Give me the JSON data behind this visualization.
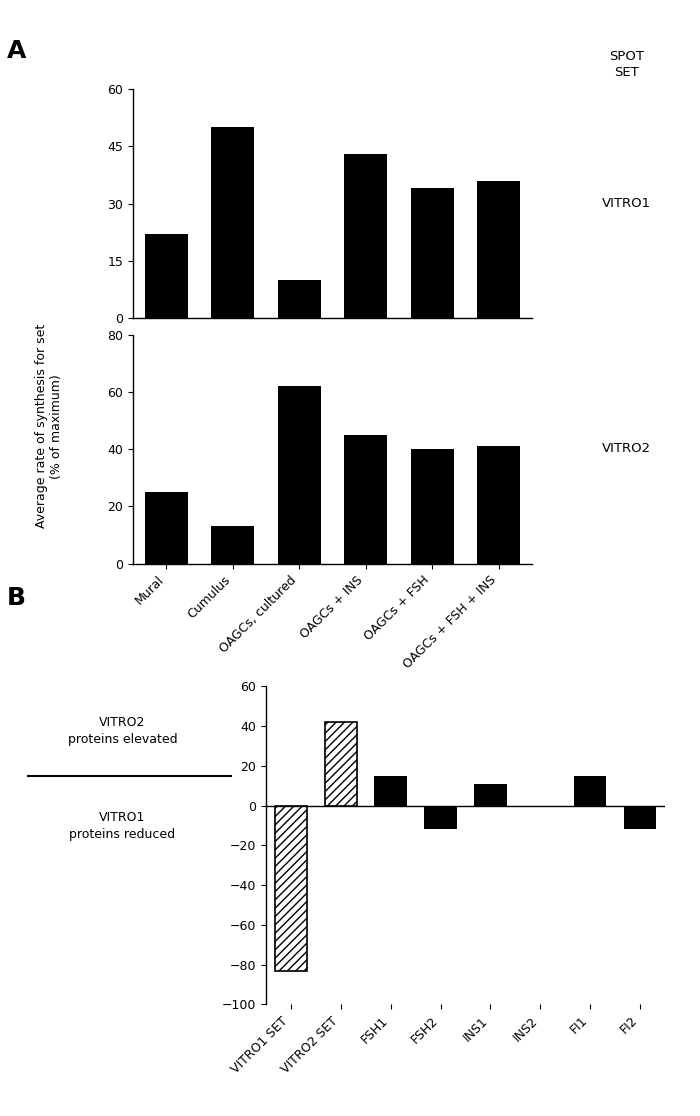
{
  "panel_A": {
    "vitro1": {
      "categories": [
        "Mural",
        "Cumulus",
        "OAGCs, cultured",
        "OAGCs + INS",
        "OAGCs + FSH",
        "OAGCs + FSH + INS"
      ],
      "values": [
        22,
        50,
        10,
        43,
        34,
        36
      ],
      "ylim": [
        0,
        60
      ],
      "yticks": [
        0,
        15,
        30,
        45,
        60
      ],
      "label": "VITRO1"
    },
    "vitro2": {
      "categories": [
        "Mural",
        "Cumulus",
        "OAGCs, cultured",
        "OAGCs + INS",
        "OAGCs + FSH",
        "OAGCs + FSH + INS"
      ],
      "values": [
        25,
        13,
        62,
        45,
        40,
        41
      ],
      "ylim": [
        0,
        80
      ],
      "yticks": [
        0,
        20,
        40,
        60,
        80
      ],
      "label": "VITRO2"
    },
    "ylabel": "Average rate of synthesis for set\n(% of maximum)",
    "spot_set_label": "SPOT\nSET"
  },
  "panel_B": {
    "categories": [
      "VITRO1 SET",
      "VITRO2 SET",
      "FSH1",
      "FSH2",
      "INS1",
      "INS2",
      "FI1",
      "FI2"
    ],
    "values": [
      -83,
      42,
      15,
      -12,
      11,
      0,
      15,
      -12
    ],
    "hatched": [
      true,
      true,
      false,
      false,
      false,
      false,
      false,
      false
    ],
    "ylim": [
      -100,
      60
    ],
    "yticks": [
      -100,
      -80,
      -60,
      -40,
      -20,
      0,
      20,
      40,
      60
    ],
    "text_vitro2_elevated": "VITRO2\nproteins elevated",
    "text_vitro1_reduced": "VITRO1\nproteins reduced"
  },
  "bg_color": "#ffffff",
  "bar_color": "#000000",
  "hatch_pattern": "////"
}
